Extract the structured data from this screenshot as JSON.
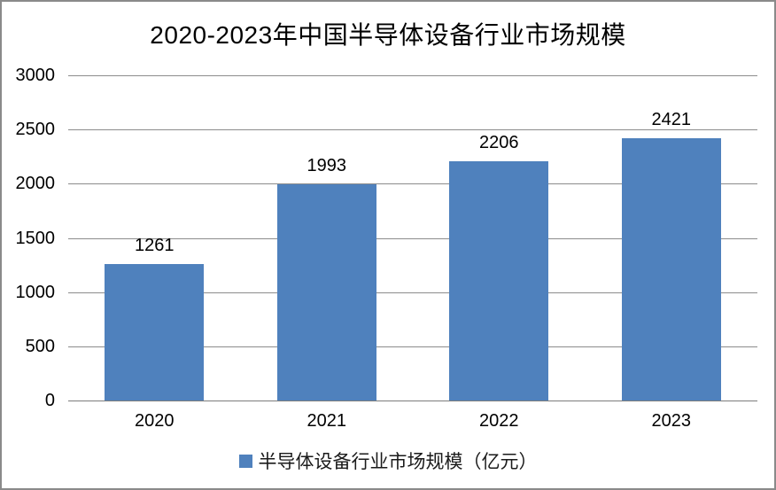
{
  "title": "2020-2023年中国半导体设备行业市场规模",
  "legend": {
    "label": "半导体设备行业市场规模（亿元）"
  },
  "colors": {
    "bar": "#4F81BD",
    "gridline": "#8c8c8c",
    "border": "#8a8a8a",
    "text": "#000000"
  },
  "chart_data": {
    "type": "bar",
    "title": "2020-2023年中国半导体设备行业市场规模",
    "categories": [
      "2020",
      "2021",
      "2022",
      "2023"
    ],
    "values": [
      1261,
      1993,
      2206,
      2421
    ],
    "series_name": "半导体设备行业市场规模（亿元）",
    "xlabel": "",
    "ylabel": "",
    "ylim": [
      0,
      3000
    ],
    "yticks": [
      0,
      500,
      1000,
      1500,
      2000,
      2500,
      3000
    ],
    "grid": true,
    "data_labels": true,
    "legend_position": "bottom",
    "bar_color": "#4F81BD"
  }
}
